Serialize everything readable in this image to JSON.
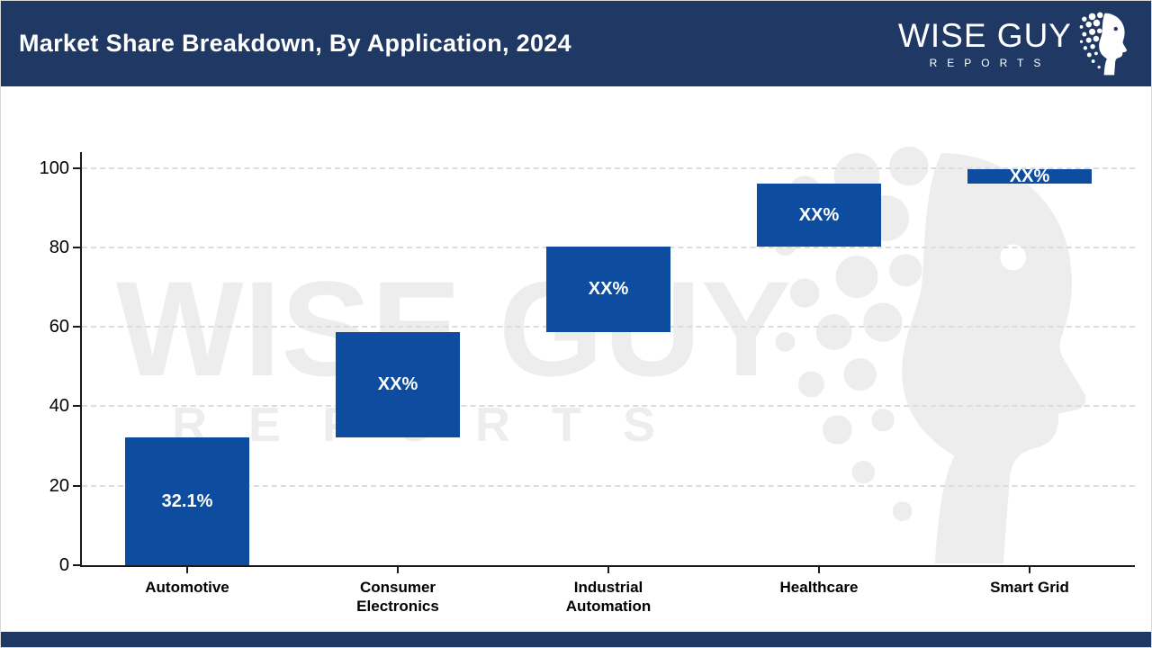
{
  "header": {
    "title": "Market Share Breakdown, By Application, 2024",
    "logo": {
      "line1": "WISE GUY",
      "line2": "REPORTS"
    }
  },
  "watermark": {
    "line1": "WISE GUY",
    "line2": "REPORTS"
  },
  "colors": {
    "header_bg": "#1f3864",
    "bar": "#0d4c9e",
    "bar_label": "#ffffff",
    "gridline": "#dcdcdc",
    "axis": "#1a1a1a",
    "watermark": "#ededed"
  },
  "chart_data": {
    "type": "bar",
    "subtype": "waterfall",
    "title": "Market Share Breakdown, By Application, 2024",
    "xlabel": "",
    "ylabel": "",
    "categories": [
      "Automotive",
      "Consumer Electronics",
      "Industrial Automation",
      "Healthcare",
      "Smart Grid"
    ],
    "segments": [
      {
        "category": "Automotive",
        "start": 0,
        "end": 32.1,
        "label": "32.1%"
      },
      {
        "category": "Consumer Electronics",
        "start": 32.1,
        "end": 58.6,
        "label": "XX%"
      },
      {
        "category": "Industrial Automation",
        "start": 58.6,
        "end": 80.1,
        "label": "XX%"
      },
      {
        "category": "Healthcare",
        "start": 80.1,
        "end": 96.0,
        "label": "XX%"
      },
      {
        "category": "Smart Grid",
        "start": 96.0,
        "end": 99.7,
        "label": "XX%"
      }
    ],
    "yticks": [
      0,
      20,
      40,
      60,
      80,
      100
    ],
    "ylim": [
      0,
      104
    ],
    "grid": "horizontal-dashed",
    "legend": "none",
    "bar_color": "#0d4c9e",
    "label_color": "#ffffff"
  }
}
